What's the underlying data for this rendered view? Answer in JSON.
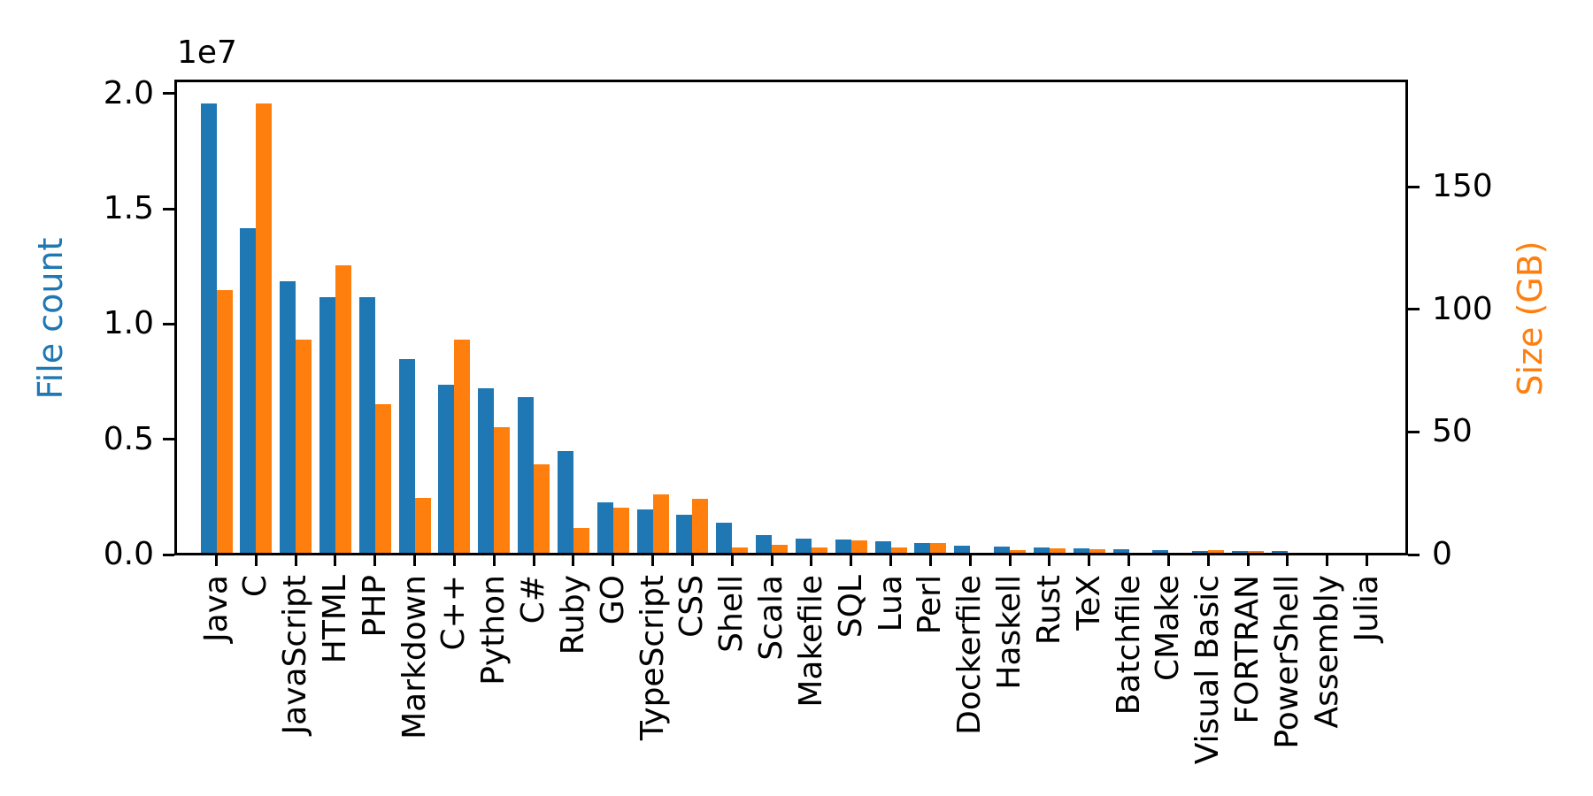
{
  "chart_data": {
    "type": "bar",
    "title": "",
    "grid": false,
    "legend": "none",
    "categories": [
      "Java",
      "C",
      "JavaScript",
      "HTML",
      "PHP",
      "Markdown",
      "C++",
      "Python",
      "C#",
      "Ruby",
      "GO",
      "TypeScript",
      "CSS",
      "Shell",
      "Scala",
      "Makefile",
      "SQL",
      "Lua",
      "Perl",
      "Dockerfile",
      "Haskell",
      "Rust",
      "TeX",
      "Batchfile",
      "CMake",
      "Visual Basic",
      "FORTRAN",
      "PowerShell",
      "Assembly",
      "Julia"
    ],
    "series": [
      {
        "name": "File count",
        "axis": "left",
        "color": "#1f77b4",
        "values": [
          19548190,
          14143113,
          11839883,
          11178557,
          11177610,
          8464626,
          7380520,
          7226626,
          6811652,
          4473331,
          2265436,
          1940406,
          1734406,
          1385648,
          835755,
          679430,
          656671,
          578554,
          497949,
          366505,
          340380,
          322431,
          251015,
          236945,
          175282,
          155652,
          142038,
          136846,
          82905,
          58317
        ]
      },
      {
        "name": "Size (GB)",
        "axis": "right",
        "color": "#ff7f0e",
        "values": [
          107.7,
          183.83,
          87.82,
          118.12,
          61.41,
          23.09,
          87.73,
          52.03,
          36.83,
          10.95,
          19.28,
          24.59,
          22.67,
          3.01,
          3.87,
          2.92,
          5.67,
          2.81,
          4.7,
          0.71,
          1.85,
          2.68,
          2.15,
          0.7,
          0.54,
          1.91,
          1.62,
          0.69,
          0.78,
          0.29
        ]
      }
    ],
    "left_axis": {
      "label": "File count",
      "label_color": "#1f77b4",
      "offset_text": "1e7",
      "tick_labels": [
        "0.0",
        "0.5",
        "1.0",
        "1.5",
        "2.0"
      ],
      "tick_values": [
        0,
        5000000,
        10000000,
        15000000,
        20000000
      ],
      "ylim": [
        0,
        20525600
      ]
    },
    "right_axis": {
      "label": "Size (GB)",
      "label_color": "#ff7f0e",
      "tick_labels": [
        "0",
        "50",
        "100",
        "150"
      ],
      "tick_values": [
        0,
        50,
        100,
        150
      ],
      "ylim": [
        0,
        193.02
      ]
    }
  }
}
